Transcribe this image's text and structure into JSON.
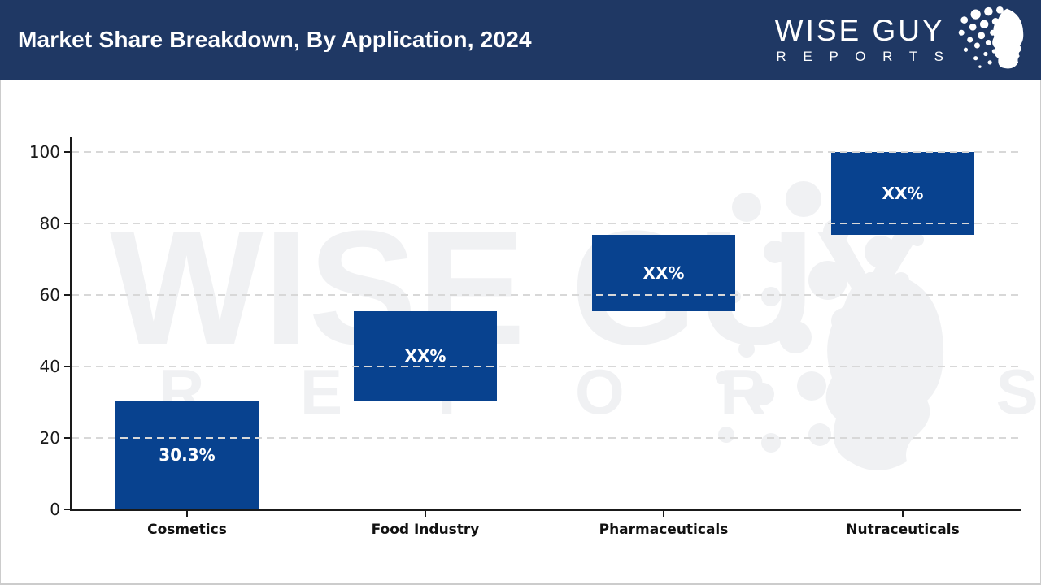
{
  "header": {
    "title": "Market Share Breakdown, By Application, 2024",
    "bg_color": "#1f3864",
    "logo": {
      "line1": "WISE GUY",
      "line2": "R E P O R T S"
    }
  },
  "chart_data": {
    "type": "bar",
    "subtype": "waterfall",
    "title": "Market Share Breakdown, By Application, 2024",
    "categories": [
      "Cosmetics",
      "Food Industry",
      "Pharmaceuticals",
      "Nutraceuticals"
    ],
    "segments": [
      {
        "category": "Cosmetics",
        "start": 0,
        "end": 30.3,
        "label": "30.3%"
      },
      {
        "category": "Food Industry",
        "start": 30.3,
        "end": 55.4,
        "label": "XX%"
      },
      {
        "category": "Pharmaceuticals",
        "start": 55.4,
        "end": 76.8,
        "label": "XX%"
      },
      {
        "category": "Nutraceuticals",
        "start": 76.8,
        "end": 100,
        "label": "XX%"
      }
    ],
    "yticks": [
      0,
      20,
      40,
      60,
      80,
      100
    ],
    "ylim": [
      0,
      104
    ],
    "xlabel": "",
    "ylabel": "",
    "grid": "horizontal-dashed",
    "legend": "none",
    "bar_color": "#08428f",
    "axis_color": "#1a1a1a",
    "grid_color": "#d8d8d8",
    "watermark": {
      "line1": "WISE GUY",
      "line2": "R E P O R T S",
      "color": "#f0f1f3"
    }
  }
}
